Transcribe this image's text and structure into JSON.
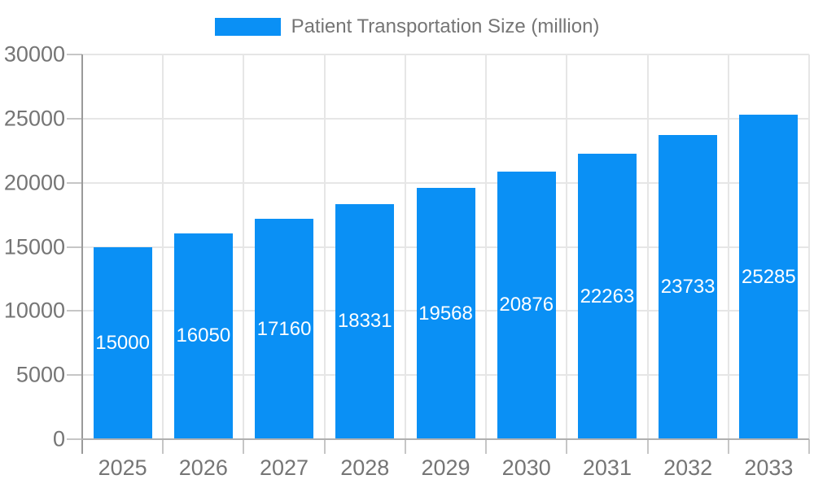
{
  "legend": {
    "label": "Patient Transportation Size (million)"
  },
  "colors": {
    "bar": "#0a90f5",
    "grid": "#e6e6e6",
    "y_axis": "#9a9a9a",
    "x_axis": "#b0b0b0",
    "tick": "#c6c6c6",
    "axis_text": "#757575",
    "value_text": "#ffffff",
    "background": "#ffffff"
  },
  "chart_data": {
    "type": "bar",
    "title": "Patient Transportation Size (million)",
    "categories": [
      "2025",
      "2026",
      "2027",
      "2028",
      "2029",
      "2030",
      "2031",
      "2032",
      "2033"
    ],
    "series": [
      {
        "name": "Patient Transportation Size (million)",
        "values": [
          15000,
          16050,
          17160,
          18331,
          19568,
          20876,
          22263,
          23733,
          25285
        ]
      }
    ],
    "values": [
      15000,
      16050,
      17160,
      18331,
      19568,
      20876,
      22263,
      23733,
      25285
    ],
    "value_labels": [
      "15000",
      "16050",
      "17160",
      "18331",
      "19568",
      "20876",
      "22263",
      "23733",
      "25285"
    ],
    "xlabel": "",
    "ylabel": "",
    "ylim": [
      0,
      30000
    ],
    "yticks": [
      0,
      5000,
      10000,
      15000,
      20000,
      25000,
      30000
    ],
    "ytick_labels": [
      "0",
      "5000",
      "10000",
      "15000",
      "20000",
      "25000",
      "30000"
    ],
    "grid": true,
    "legend_position": "top-center",
    "value_label_position": "inside-center"
  }
}
